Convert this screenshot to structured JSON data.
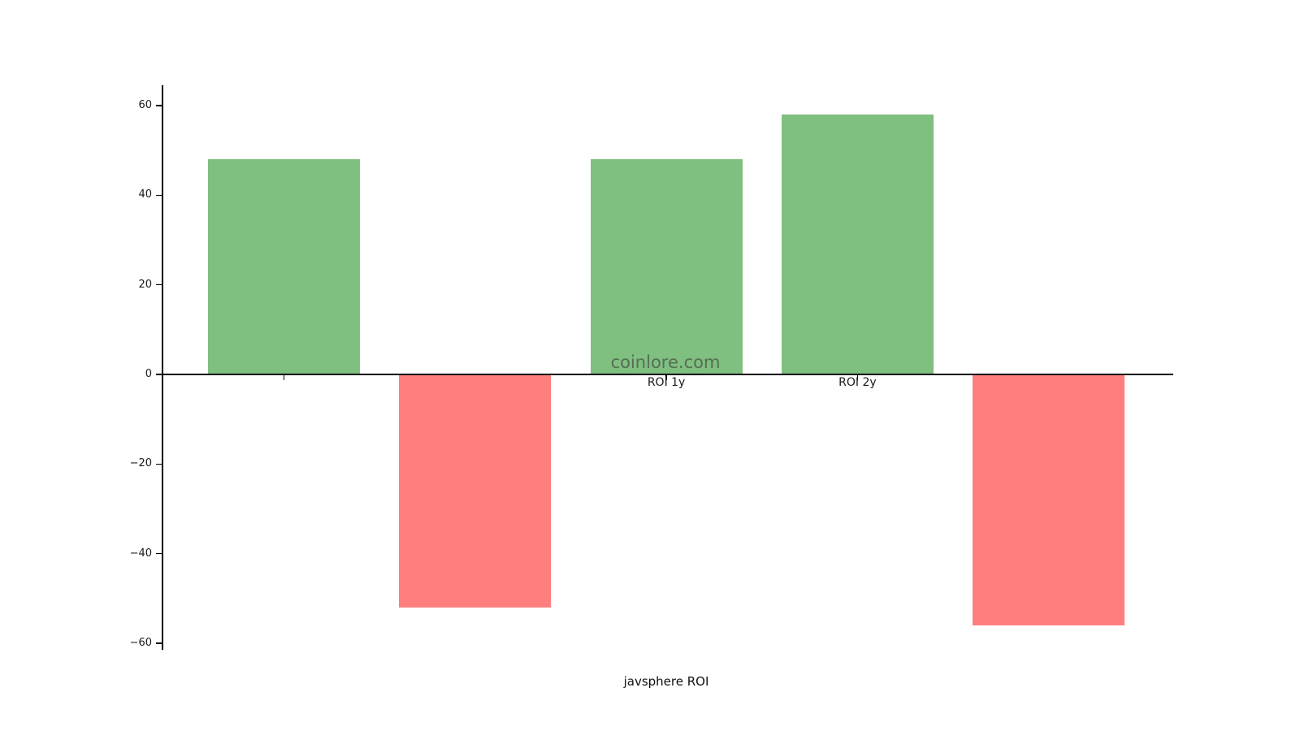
{
  "chart_data": {
    "type": "bar",
    "title": "javsphere ROI",
    "watermark": "coinlore.com",
    "categories": [
      "",
      "",
      "ROI 1y",
      "ROI 2y",
      ""
    ],
    "values": [
      48,
      -52,
      48,
      58,
      -56
    ],
    "xtick_indices": [
      0,
      2,
      3
    ],
    "ytick_values": [
      60,
      40,
      20,
      0,
      -20,
      -40,
      -60
    ],
    "ytick_labels": [
      "60",
      "40",
      "20",
      "0",
      "−20",
      "−40",
      "−60"
    ],
    "ylim": [
      -61.5,
      64.5
    ],
    "xlabel": "",
    "ylabel": "",
    "grid": false,
    "legend_position": "none",
    "colors": {
      "bar_positive": "#7fbf7f",
      "bar_negative": "#ff7f7f",
      "axis": "#000000",
      "tick_text": "#1a1a1a",
      "watermark_text": "rgba(60,60,60,0.62)"
    }
  }
}
